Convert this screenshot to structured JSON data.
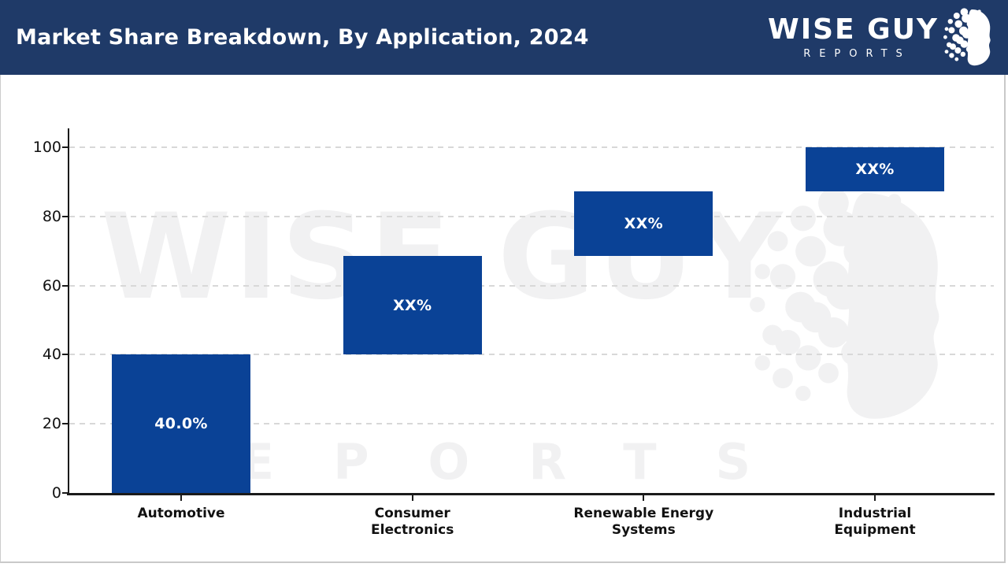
{
  "header": {
    "title": "Market Share Breakdown, By Application, 2024",
    "brand": {
      "name": "WISE GUY",
      "subtitle": "REPORTS",
      "head_icon": "dotted-head-profile-icon"
    }
  },
  "watermark": {
    "name": "WISE GUY",
    "subtitle": "REPORTS"
  },
  "chart_data": {
    "type": "bar",
    "variant": "waterfall",
    "title": "Market Share Breakdown, By Application, 2024",
    "xlabel": "",
    "ylabel": "",
    "ylim": [
      0,
      100
    ],
    "yticks": [
      0,
      20,
      40,
      60,
      80,
      100
    ],
    "grid": "horizontal-dashed",
    "legend": "none",
    "bar_color": "#0a4296",
    "categories": [
      "Automotive",
      "Consumer Electronics",
      "Renewable Energy Systems",
      "Industrial Equipment"
    ],
    "category_label_lines": [
      [
        "Automotive"
      ],
      [
        "Consumer",
        "Electronics"
      ],
      [
        "Renewable Energy",
        "Systems"
      ],
      [
        "Industrial",
        "Equipment"
      ]
    ],
    "segments": [
      {
        "category": "Automotive",
        "start": 0,
        "end": 40,
        "value": 40.0,
        "label": "40.0%"
      },
      {
        "category": "Consumer Electronics",
        "start": 40,
        "end": 68.6,
        "value": 28.6,
        "label": "XX%"
      },
      {
        "category": "Renewable Energy Systems",
        "start": 68.6,
        "end": 87.3,
        "value": 18.7,
        "label": "XX%"
      },
      {
        "category": "Industrial Equipment",
        "start": 87.3,
        "end": 100,
        "value": 12.7,
        "label": "XX%"
      }
    ]
  }
}
